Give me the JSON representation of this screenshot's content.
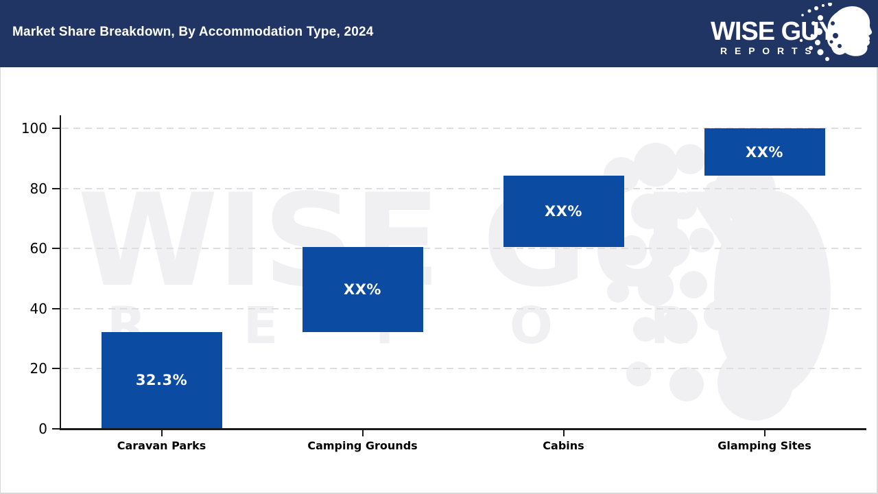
{
  "header": {
    "title": "Market Share Breakdown, By Accommodation Type, 2024",
    "logo": {
      "line1": "WISE GUY",
      "line2": "R E P O R T S"
    }
  },
  "watermark": {
    "line1": "WISE GUY",
    "line2": "R E P O R T S"
  },
  "colors": {
    "header_bg": "#213564",
    "bar": "#0b4ba1",
    "bar_label": "#ffffff",
    "axis": "#1a1a1a",
    "grid": "#dedede",
    "tick_label": "#000000",
    "watermark": "#f0f0f2"
  },
  "chart_data": {
    "type": "bar",
    "subtype": "floating-waterfall",
    "title": "Market Share Breakdown, By Accommodation Type, 2024",
    "categories": [
      "Caravan Parks",
      "Camping Grounds",
      "Cabins",
      "Glamping Sites"
    ],
    "series": [
      {
        "name": "Market share (%)",
        "segments": [
          {
            "category": "Caravan Parks",
            "start": 0,
            "end": 32.3,
            "label": "32.3%"
          },
          {
            "category": "Camping Grounds",
            "start": 32.3,
            "end": 60.5,
            "label": "XX%"
          },
          {
            "category": "Cabins",
            "start": 60.5,
            "end": 84.2,
            "label": "XX%"
          },
          {
            "category": "Glamping Sites",
            "start": 84.2,
            "end": 100,
            "label": "XX%"
          }
        ]
      }
    ],
    "xlabel": "",
    "ylabel": "",
    "ylim": [
      0,
      105
    ],
    "yticks": [
      0,
      20,
      40,
      60,
      80,
      100
    ],
    "grid": "horizontal-dashed",
    "legend": null
  }
}
